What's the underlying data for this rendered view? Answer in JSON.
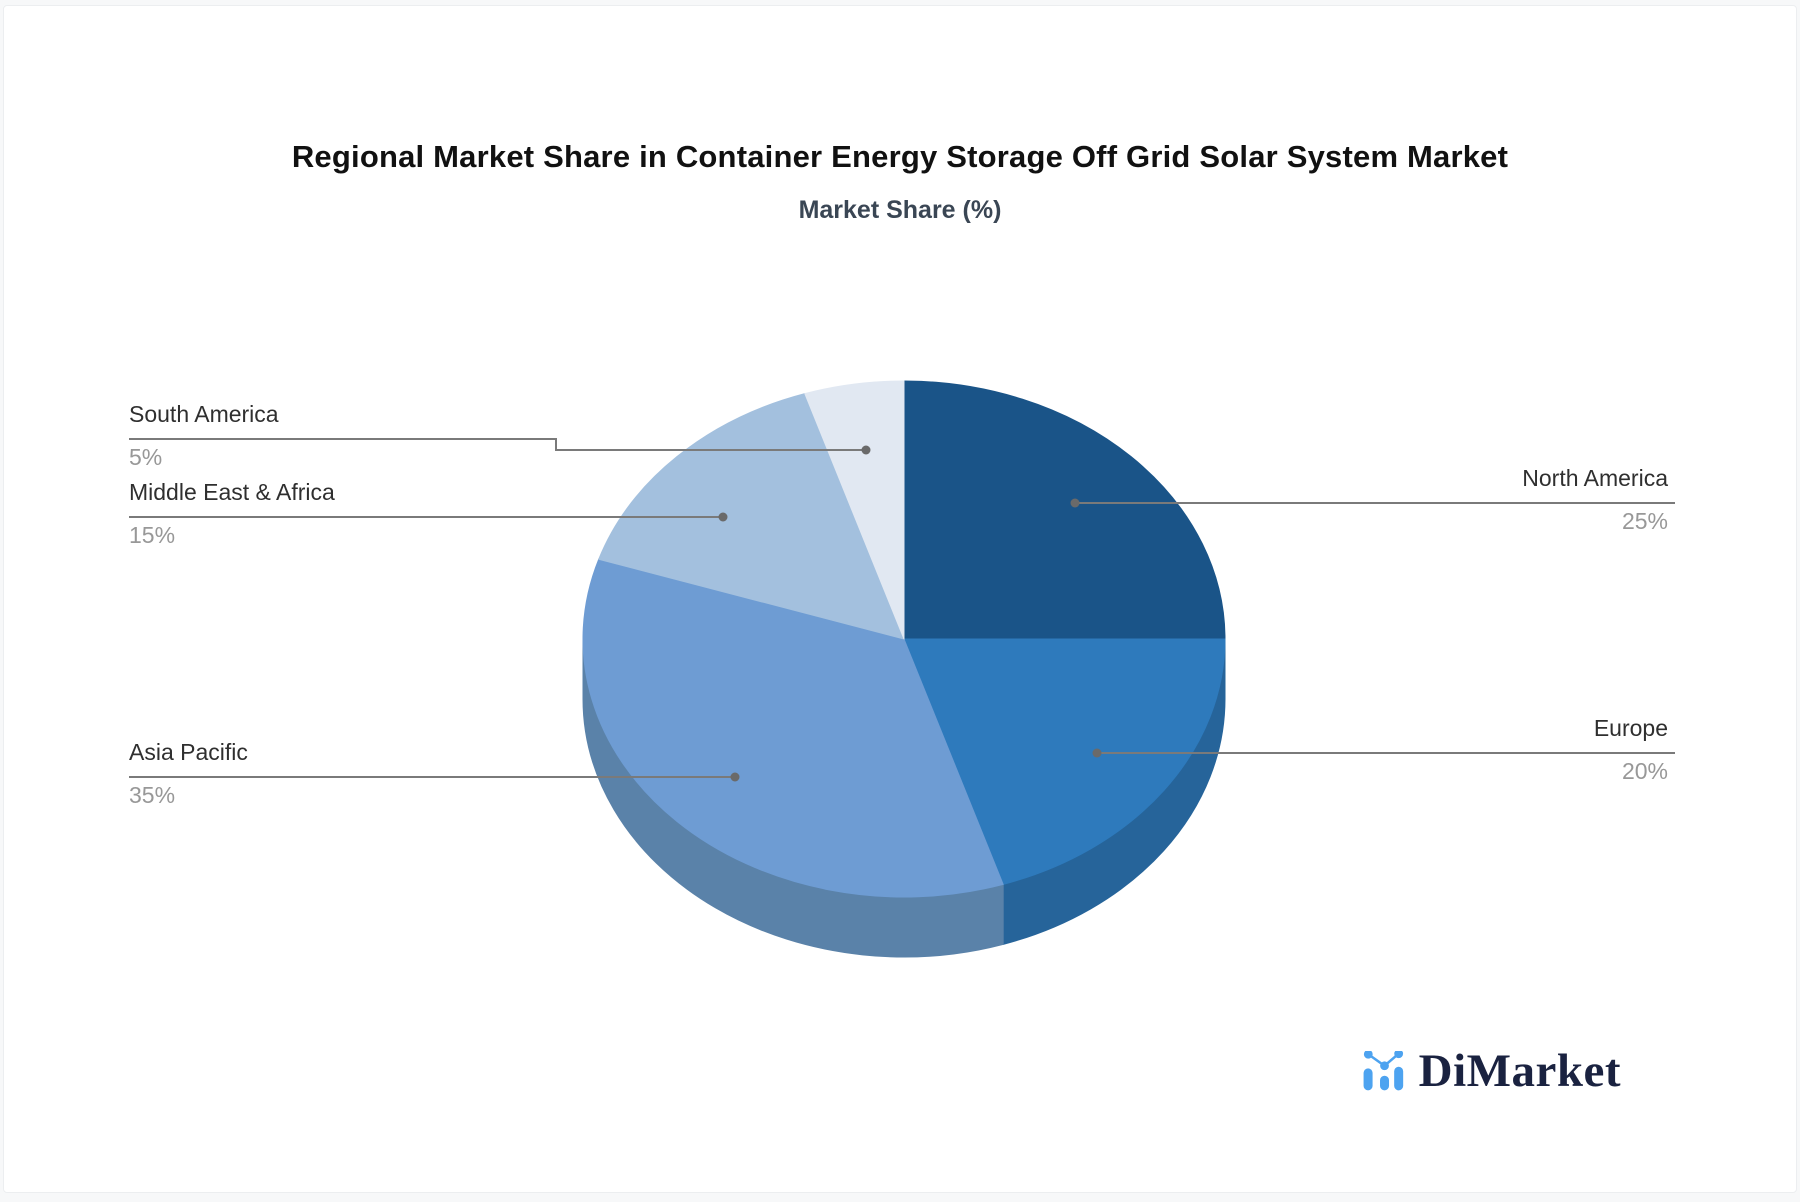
{
  "chart_data": {
    "type": "pie",
    "style": "3d",
    "title": "Regional Market Share in Container Energy Storage Off Grid Solar System Market",
    "subtitle": "Market Share (%)",
    "unit": "%",
    "start_angle_deg": 0,
    "direction": "clockwise",
    "slices": [
      {
        "label": "North America",
        "value": 25,
        "pct_label": "25%",
        "color": "#1a5488",
        "side_color": "#133e64",
        "label_side": "right"
      },
      {
        "label": "Europe",
        "value": 20,
        "pct_label": "20%",
        "color": "#2e7abc",
        "side_color": "#26649a",
        "label_side": "right"
      },
      {
        "label": "Asia Pacific",
        "value": 35,
        "pct_label": "35%",
        "color": "#6e9cd3",
        "side_color": "#5a82a9",
        "label_side": "left"
      },
      {
        "label": "Middle East & Africa",
        "value": 15,
        "pct_label": "15%",
        "color": "#a3c0de",
        "side_color": "#87a2bb",
        "label_side": "left"
      },
      {
        "label": "South America",
        "value": 5,
        "pct_label": "5%",
        "color": "#e1e8f2",
        "side_color": "#bcc5d2",
        "label_side": "left"
      }
    ],
    "legend_position": "none",
    "grid": false,
    "leader_line_color": "#7a7a7a",
    "leader_dot_color": "#6a6a6a",
    "label_text_color": "#2f2f2f",
    "value_text_color": "#989898",
    "title_color": "#111111",
    "subtitle_color": "#3a4654"
  },
  "branding": {
    "logo_text": "DiMarket",
    "logo_icon": "bar-chart-trend-icon",
    "logo_text_color": "#1a2240",
    "logo_accent_color": "#4da3f0"
  }
}
